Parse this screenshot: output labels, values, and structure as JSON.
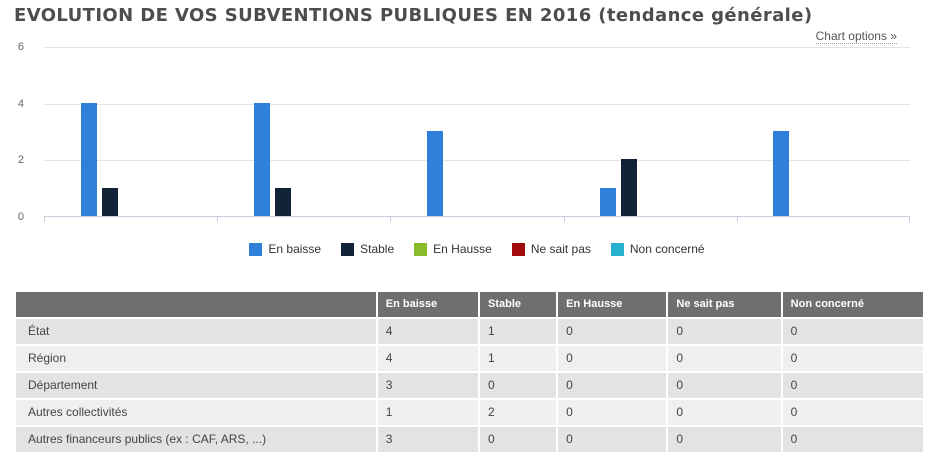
{
  "header": {
    "title": "EVOLUTION DE VOS SUBVENTIONS PUBLIQUES EN 2016 (tendance générale)",
    "chart_options_label": "Chart options »"
  },
  "chart_data": {
    "type": "bar",
    "title": "EVOLUTION DE VOS SUBVENTIONS PUBLIQUES EN 2016 (tendance générale)",
    "categories": [
      "État",
      "Région",
      "Département",
      "Autres collectivités",
      "Autres financeurs publics (ex : CAF, ARS, ...)"
    ],
    "series": [
      {
        "name": "En baisse",
        "color": "#2f80d8",
        "values": [
          4,
          4,
          3,
          1,
          3
        ]
      },
      {
        "name": "Stable",
        "color": "#122338",
        "values": [
          1,
          1,
          0,
          2,
          0
        ]
      },
      {
        "name": "En Hausse",
        "color": "#8abb2a",
        "values": [
          0,
          0,
          0,
          0,
          0
        ]
      },
      {
        "name": "Ne sait pas",
        "color": "#a30c0e",
        "values": [
          0,
          0,
          0,
          0,
          0
        ]
      },
      {
        "name": "Non concerné",
        "color": "#28b0ce",
        "values": [
          0,
          0,
          0,
          0,
          0
        ]
      }
    ],
    "ylim": [
      0,
      6
    ],
    "yticks": [
      0,
      2,
      4,
      6
    ],
    "grid": true,
    "legend_position": "bottom",
    "xlabel": "",
    "ylabel": ""
  },
  "table": {
    "columns": [
      "",
      "En baisse",
      "Stable",
      "En Hausse",
      "Ne sait pas",
      "Non concerné"
    ],
    "rows": [
      {
        "label": "État",
        "values": [
          4,
          1,
          0,
          0,
          0
        ]
      },
      {
        "label": "Région",
        "values": [
          4,
          1,
          0,
          0,
          0
        ]
      },
      {
        "label": "Département",
        "values": [
          3,
          0,
          0,
          0,
          0
        ]
      },
      {
        "label": "Autres collectivités",
        "values": [
          1,
          2,
          0,
          0,
          0
        ]
      },
      {
        "label": "Autres financeurs publics (ex : CAF, ARS, ...)",
        "values": [
          3,
          0,
          0,
          0,
          0
        ]
      }
    ]
  }
}
